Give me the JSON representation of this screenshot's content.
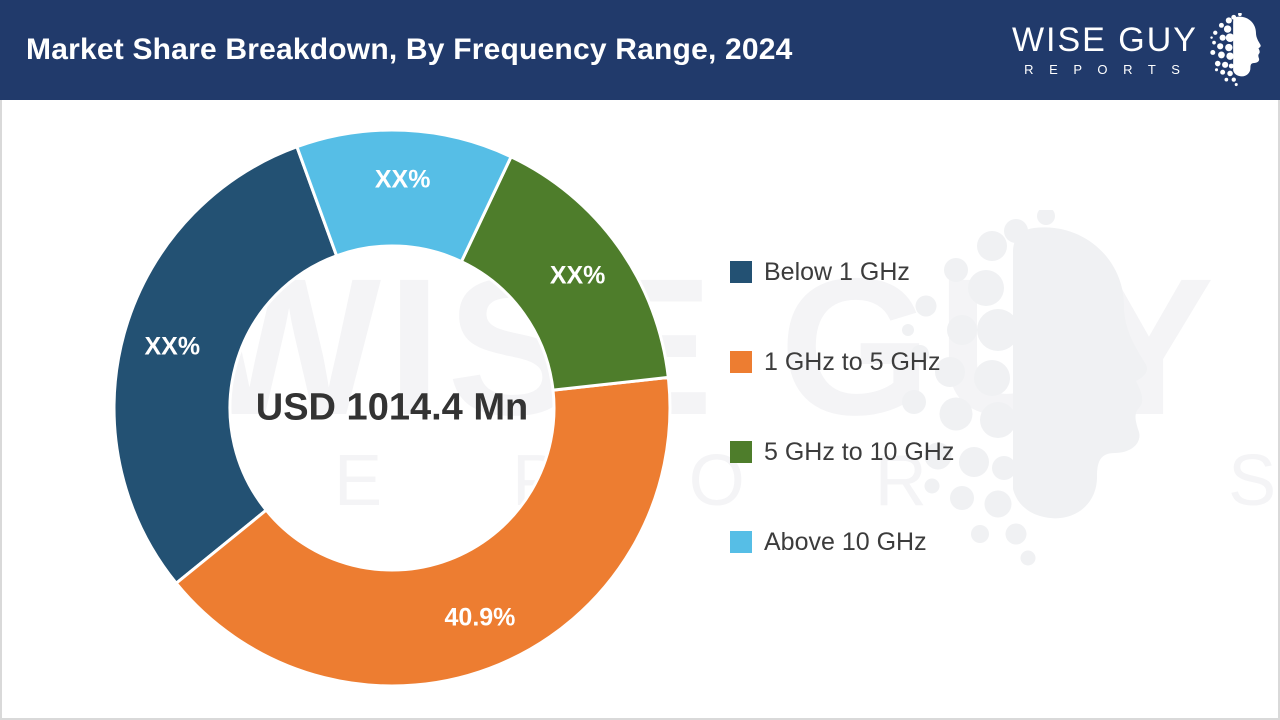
{
  "header": {
    "title": "Market Share Breakdown, By Frequency Range, 2024",
    "logo": {
      "name": "WISE GUY",
      "subtitle": "R E P O R T S",
      "icon": "dotted-face-profile"
    }
  },
  "watermark": {
    "line1": "WISE GUY",
    "line2": "R E P O R T S"
  },
  "chart_data": {
    "type": "pie",
    "subtype": "donut",
    "title": "Market Share Breakdown, By Frequency Range, 2024",
    "center_label": "USD 1014.4 Mn",
    "legend_position": "right",
    "start_angle_deg": 110,
    "direction": "counterclockwise",
    "slices": [
      {
        "label": "Below 1 GHz",
        "display": "XX%",
        "value_pct_est": 30.3,
        "color": "#235173"
      },
      {
        "label": "1 GHz to 5 GHz",
        "display": "40.9%",
        "value_pct_est": 40.9,
        "color": "#ED7D31"
      },
      {
        "label": "5 GHz to 10 GHz",
        "display": "XX%",
        "value_pct_est": 16.2,
        "color": "#4E7D2B"
      },
      {
        "label": "Above 10 GHz",
        "display": "XX%",
        "value_pct_est": 12.6,
        "color": "#56BEE6"
      }
    ]
  },
  "theme": {
    "header_bg": "#213A6B",
    "text_dark": "#3C3C3C",
    "center_text": "#333333",
    "watermark_color": "#F4F4F6",
    "slice_border": "#FFFFFF"
  }
}
